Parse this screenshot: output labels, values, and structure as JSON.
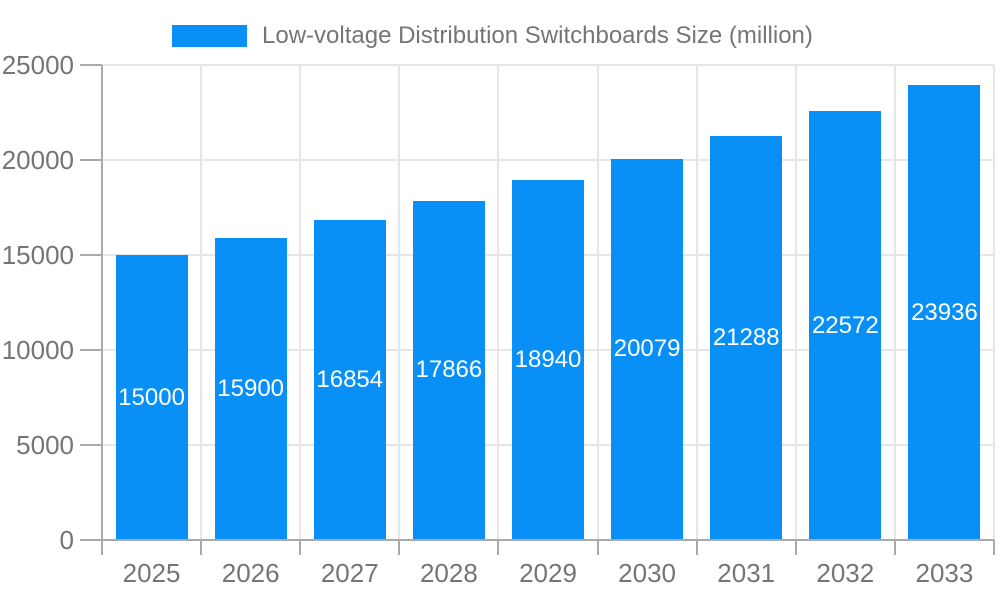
{
  "chart_data": {
    "type": "bar",
    "title": "Low-voltage Distribution Switchboards Size (million)",
    "legend_entries": [
      "Low-voltage Distribution Switchboards Size (million)"
    ],
    "legend_position": "top",
    "categories": [
      "2025",
      "2026",
      "2027",
      "2028",
      "2029",
      "2030",
      "2031",
      "2032",
      "2033"
    ],
    "values": [
      15000,
      15900,
      16854,
      17866,
      18940,
      20079,
      21288,
      22572,
      23936
    ],
    "xlabel": "",
    "ylabel": "",
    "ylim": [
      0,
      25000
    ],
    "yticks": [
      0,
      5000,
      10000,
      15000,
      20000,
      25000
    ],
    "grid": true,
    "bar_label_placement": "inside-middle"
  },
  "colors": {
    "bar": "#0890f6",
    "bar_label": "#ffffff",
    "axis_text": "#757575",
    "grid": "#e6e6e6",
    "axis_line": "#aaaaaa",
    "background": "#ffffff"
  }
}
